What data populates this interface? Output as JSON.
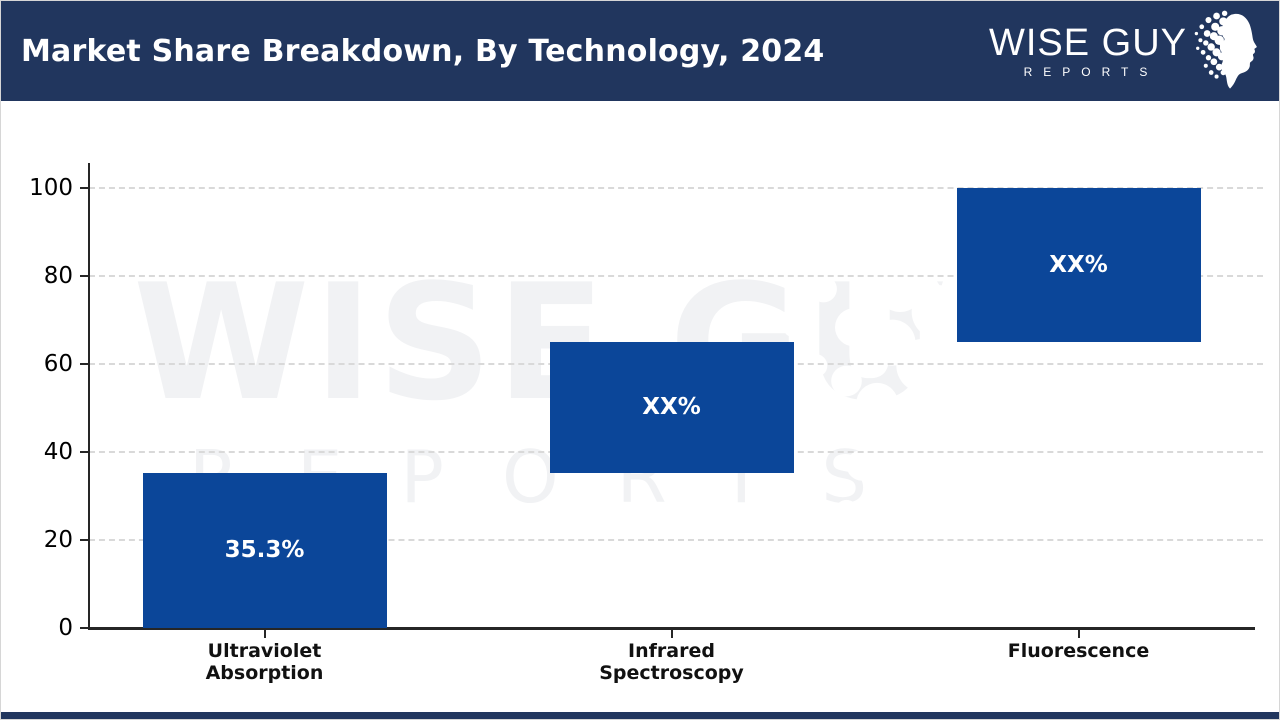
{
  "header": {
    "title": "Market Share Breakdown, By Technology, 2024",
    "logo": {
      "brand": "WISE GUY",
      "subtitle": "REPORTS"
    }
  },
  "watermark": {
    "brand": "WISE GUY",
    "subtitle": "REPORTS"
  },
  "colors": {
    "header_bg": "#21365e",
    "footer_bg": "#21365e",
    "bar": "#0b4699",
    "grid": "#d9d9d9",
    "axis": "#262626",
    "watermark": "#f1f2f4",
    "bar_label": "#ffffff"
  },
  "chart_data": {
    "type": "bar",
    "subtype": "floating-waterfall-bars",
    "title": "Market Share Breakdown, By Technology, 2024",
    "categories": [
      [
        "Ultraviolet",
        "Absorption"
      ],
      [
        "Infrared",
        "Spectroscopy"
      ],
      [
        "Fluorescence"
      ]
    ],
    "segments": [
      {
        "category": "Ultraviolet Absorption",
        "start": 0,
        "end": 35.3,
        "label": "35.3%"
      },
      {
        "category": "Infrared Spectroscopy",
        "start": 35.3,
        "end": 65,
        "label": "XX%"
      },
      {
        "category": "Fluorescence",
        "start": 65,
        "end": 100,
        "label": "XX%"
      }
    ],
    "ylim": [
      0,
      100
    ],
    "yticks": [
      0,
      20,
      40,
      60,
      80,
      100
    ],
    "xlabel": "",
    "ylabel": "",
    "grid": "horizontal-dashed",
    "legend": "none"
  }
}
